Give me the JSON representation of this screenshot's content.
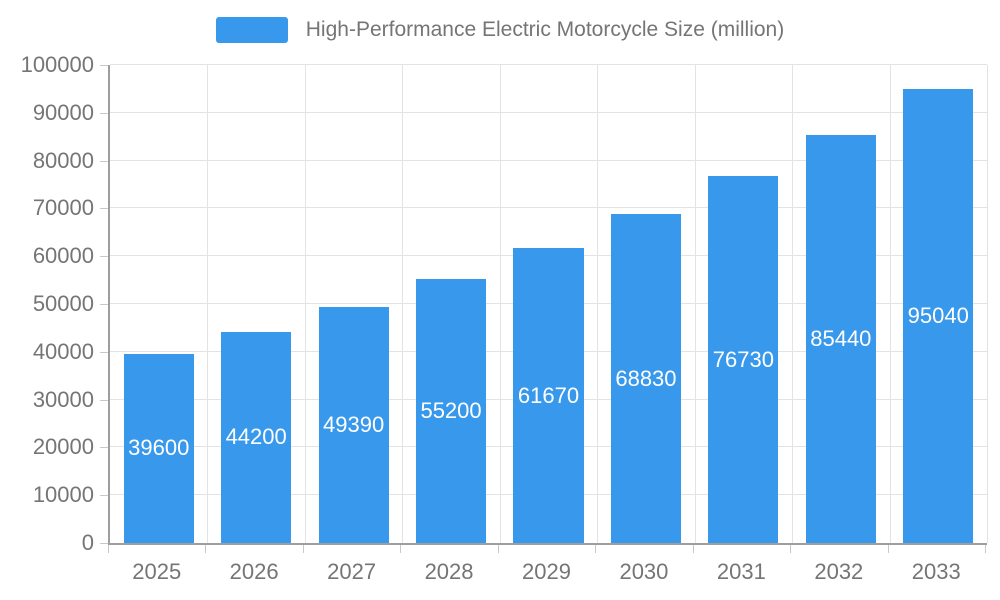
{
  "legend": {
    "label": "High-Performance Electric Motorcycle Size (million)"
  },
  "chart_data": {
    "type": "bar",
    "title": "High-Performance Electric Motorcycle Size (million)",
    "categories": [
      "2025",
      "2026",
      "2027",
      "2028",
      "2029",
      "2030",
      "2031",
      "2032",
      "2033"
    ],
    "values": [
      39600,
      44200,
      49390,
      55200,
      61670,
      68830,
      76730,
      85440,
      95040
    ],
    "xlabel": "",
    "ylabel": "",
    "ylim": [
      0,
      100000
    ],
    "ytick_step": 10000,
    "grid": true,
    "legend_position": "top-center",
    "bar_color": "#3899ec",
    "bar_label_color": "#ffffff",
    "axis_text_color": "#757575",
    "axis_line_color": "#9e9e9e",
    "gridline_color": "#e3e3e3"
  }
}
